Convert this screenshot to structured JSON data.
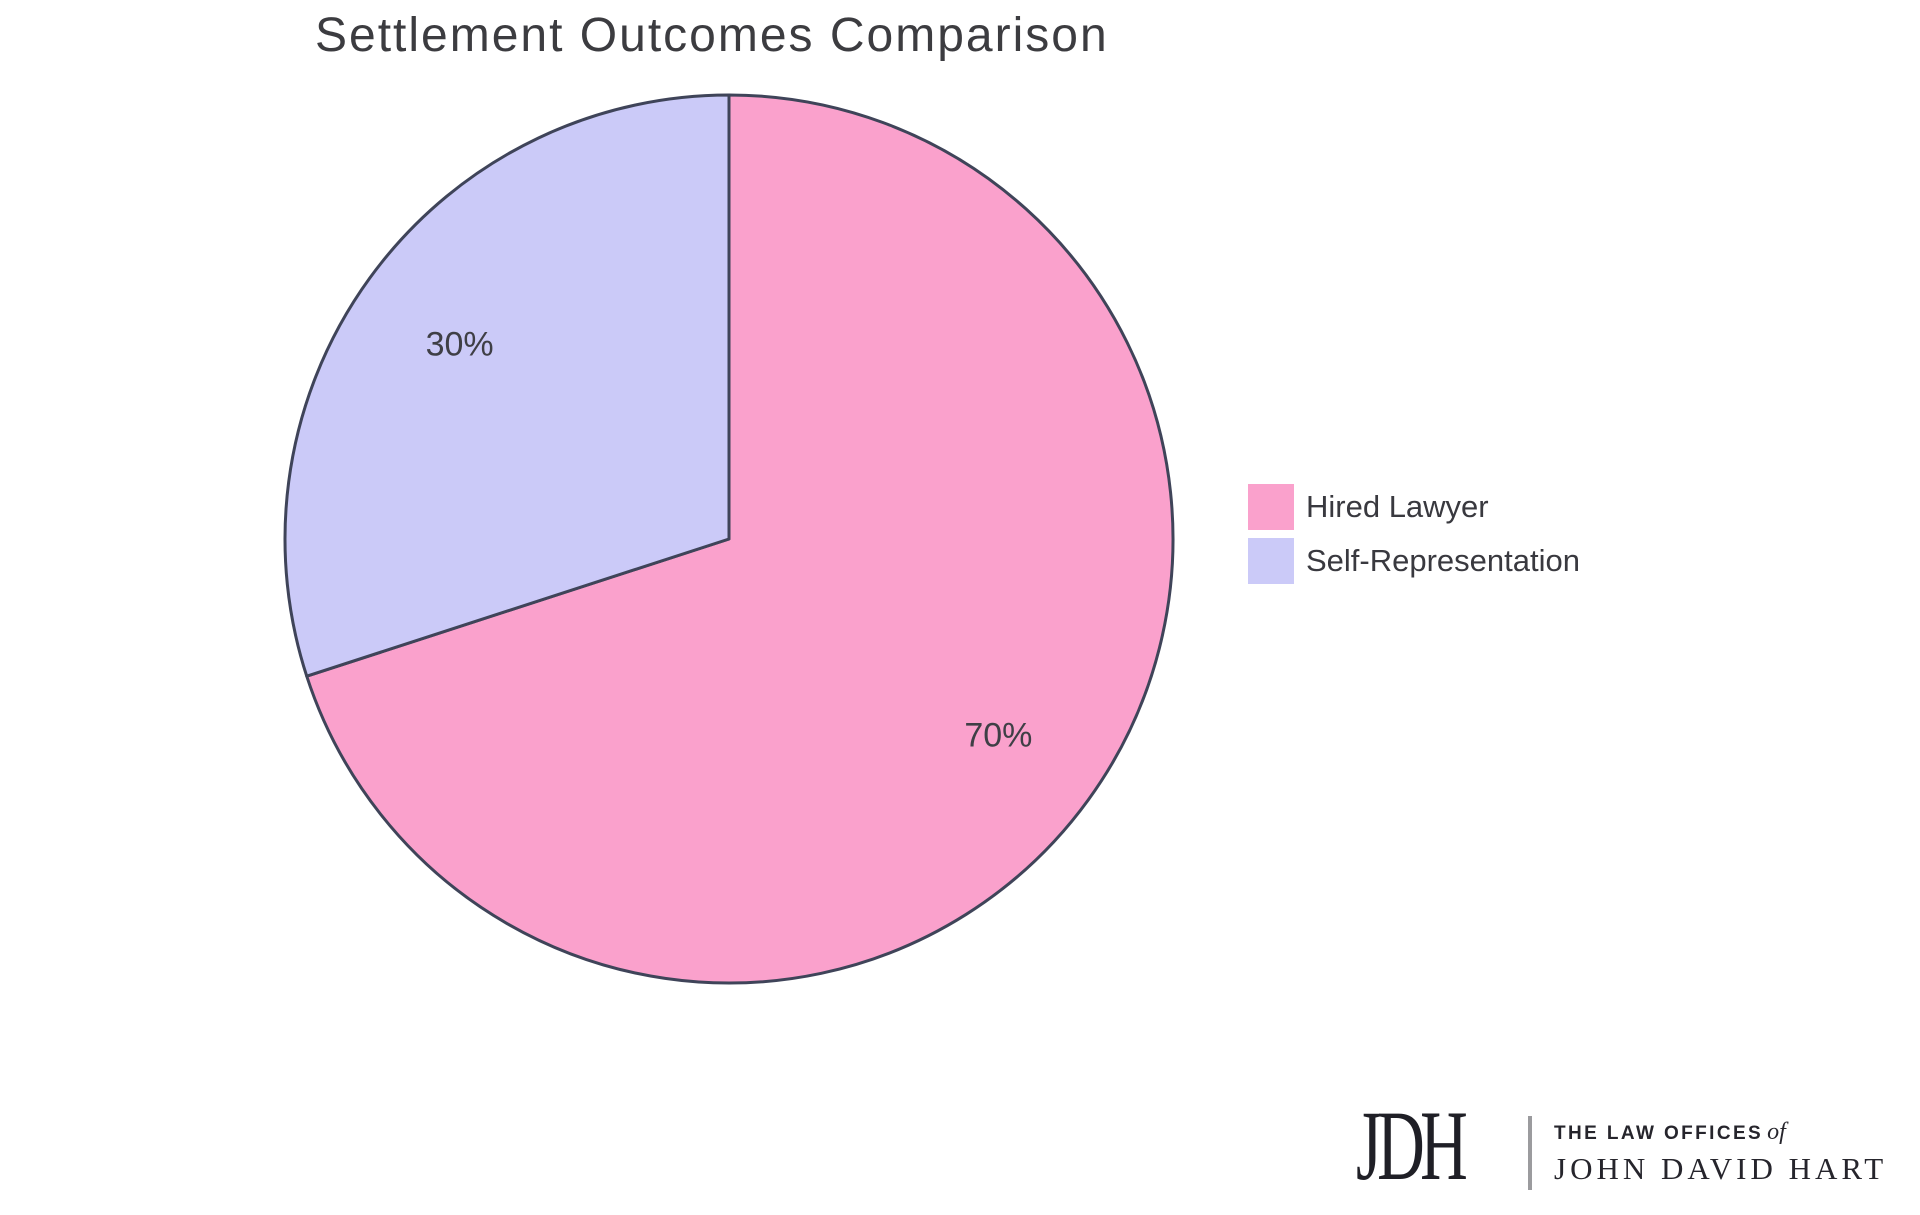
{
  "title": "Settlement Outcomes Comparison",
  "chart_data": {
    "type": "pie",
    "title": "Settlement Outcomes Comparison",
    "categories": [
      "Hired Lawyer",
      "Self-Representation"
    ],
    "values": [
      70,
      30
    ],
    "slice_labels": [
      "70%",
      "30%"
    ],
    "colors": [
      "#FAA1CC",
      "#CBCAF8"
    ],
    "stroke_color": "#3F4459",
    "stroke_width": 3,
    "start_angle_deg": 0,
    "direction": "clockwise",
    "label_radius_fraction": 0.75,
    "legend_position": "right"
  },
  "legend": {
    "items": [
      {
        "label": "Hired Lawyer",
        "color": "#FAA1CC"
      },
      {
        "label": "Self-Representation",
        "color": "#CBCAF8"
      }
    ]
  },
  "branding": {
    "monogram": "JDH",
    "tagline_prefix": "THE LAW OFFICES",
    "tagline_of": "of",
    "name": "JOHN DAVID HART"
  }
}
